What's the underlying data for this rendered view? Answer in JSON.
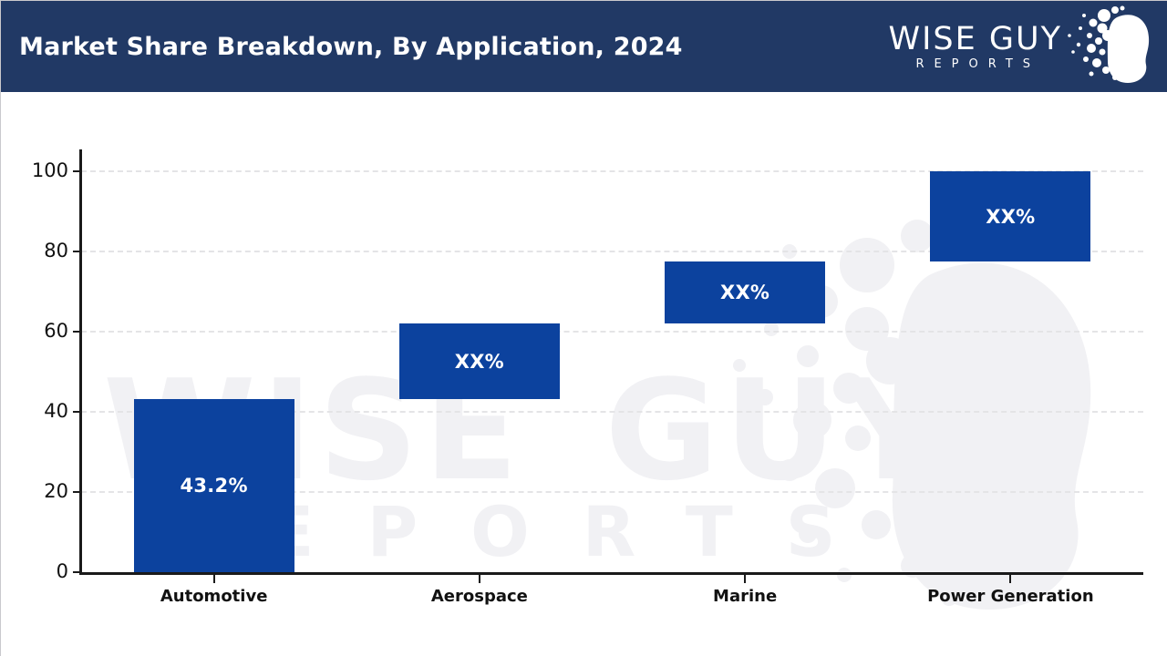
{
  "header": {
    "title": "Market Share Breakdown, By Application, 2024",
    "logo": {
      "line1": "WISE GUY",
      "line2": "REPORTS"
    }
  },
  "watermark": {
    "line1": "WISE GUY",
    "line2": "REPORTS"
  },
  "chart_data": {
    "type": "bar",
    "subtype": "waterfall",
    "title": "Market Share Breakdown, By Application, 2024",
    "categories": [
      "Automotive",
      "Aerospace",
      "Marine",
      "Power Generation"
    ],
    "segments": [
      {
        "category": "Automotive",
        "start": 0,
        "end": 43.2,
        "label": "43.2%"
      },
      {
        "category": "Aerospace",
        "start": 43.2,
        "end": 62.0,
        "label": "XX%"
      },
      {
        "category": "Marine",
        "start": 62.0,
        "end": 77.5,
        "label": "XX%"
      },
      {
        "category": "Power Generation",
        "start": 77.5,
        "end": 100,
        "label": "XX%"
      }
    ],
    "ylabel": "",
    "xlabel": "",
    "yticks": [
      0,
      20,
      40,
      60,
      80,
      100
    ],
    "ylim": [
      0,
      100
    ],
    "grid": "horizontal-dashed",
    "legend": "none",
    "bar_color": "#0c429e",
    "bar_label_color": "#ffffff",
    "header_color": "#213965",
    "grid_color": "#e4e4e6",
    "axis_color": "#1a1a1a",
    "watermark_color": "#f1f1f4"
  }
}
